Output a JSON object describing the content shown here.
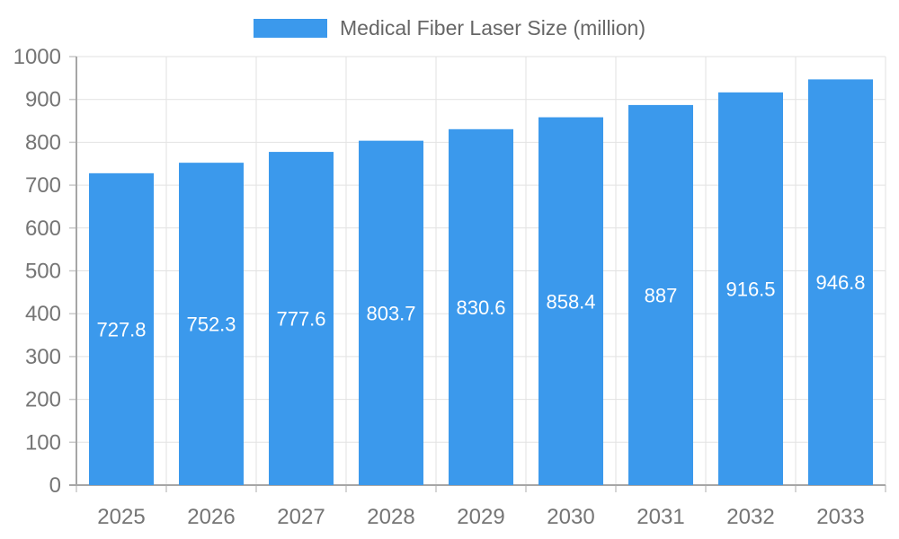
{
  "legend": {
    "label": "Medical Fiber Laser Size (million)"
  },
  "colors": {
    "bar": "#3B99EC",
    "grid": "#E2E2E2",
    "axis": "#A6A6A6",
    "tick": "#C9C9C9",
    "axis_text": "#757575",
    "bar_label": "#FFFFFF",
    "legend_text": "#666666"
  },
  "chart_data": {
    "type": "bar",
    "title": "Medical Fiber Laser Size (million)",
    "categories": [
      "2025",
      "2026",
      "2027",
      "2028",
      "2029",
      "2030",
      "2031",
      "2032",
      "2033"
    ],
    "values": [
      727.8,
      752.3,
      777.6,
      803.7,
      830.6,
      858.4,
      887,
      916.5,
      946.8
    ],
    "xlabel": "",
    "ylabel": "",
    "ylim": [
      0,
      1000
    ],
    "ytick_step": 100,
    "grid": true,
    "legend_position": "top",
    "legend_entries": [
      "Medical Fiber Laser Size (million)"
    ]
  }
}
